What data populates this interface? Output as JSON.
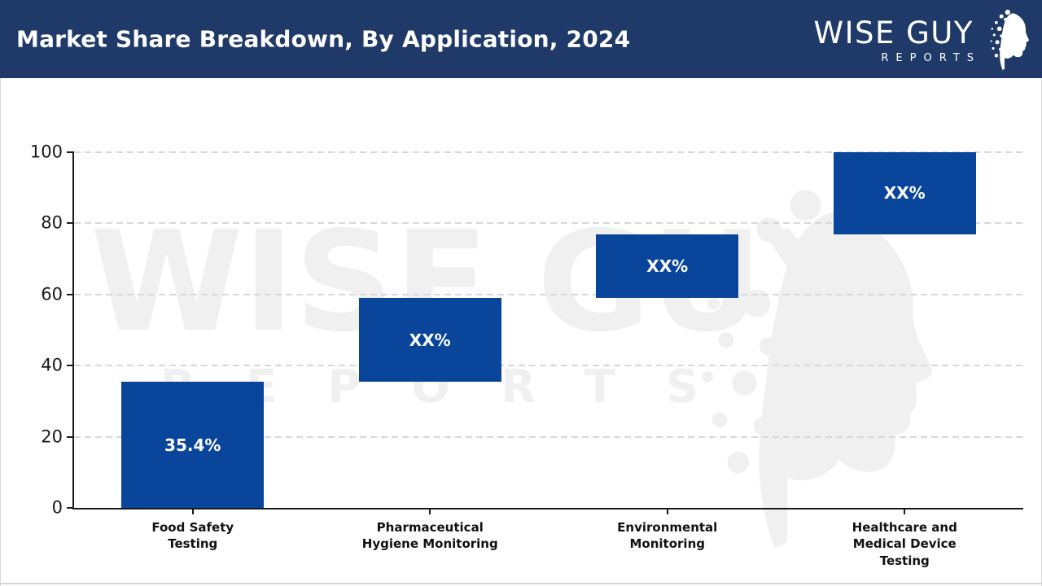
{
  "header": {
    "title": "Market Share Breakdown, By Application, 2024",
    "bg_color": "#1f3a68",
    "logo": {
      "line1": "WISE GUY",
      "line2": "REPORTS"
    }
  },
  "watermark": {
    "line1": "WISE GUY",
    "line2": "REPORTS"
  },
  "chart_data": {
    "type": "bar",
    "subtype": "waterfall",
    "title": "Market Share Breakdown, By Application, 2024",
    "categories": [
      "Food Safety\nTesting",
      "Pharmaceutical\nHygiene Monitoring",
      "Environmental\nMonitoring",
      "Healthcare and\nMedical Device\nTesting"
    ],
    "segments": [
      {
        "category": "Food Safety Testing",
        "start": 0,
        "end": 35.4,
        "label": "35.4%"
      },
      {
        "category": "Pharmaceutical Hygiene Monitoring",
        "start": 35.4,
        "end": 59,
        "label": "XX%"
      },
      {
        "category": "Environmental Monitoring",
        "start": 59,
        "end": 77,
        "label": "XX%"
      },
      {
        "category": "Healthcare and Medical Device Testing",
        "start": 77,
        "end": 100,
        "label": "XX%"
      }
    ],
    "yticks": [
      0,
      20,
      40,
      60,
      80,
      100
    ],
    "ylim": [
      0,
      100
    ],
    "xlabel": "",
    "ylabel": "",
    "grid": "dashed-horizontal",
    "legend": "none",
    "bar_width_fraction": 0.6,
    "bar_color": "#0a459c",
    "bar_label_color": "#ffffff",
    "axis_color": "#1a1a1a",
    "grid_color": "#d8d8d8"
  }
}
